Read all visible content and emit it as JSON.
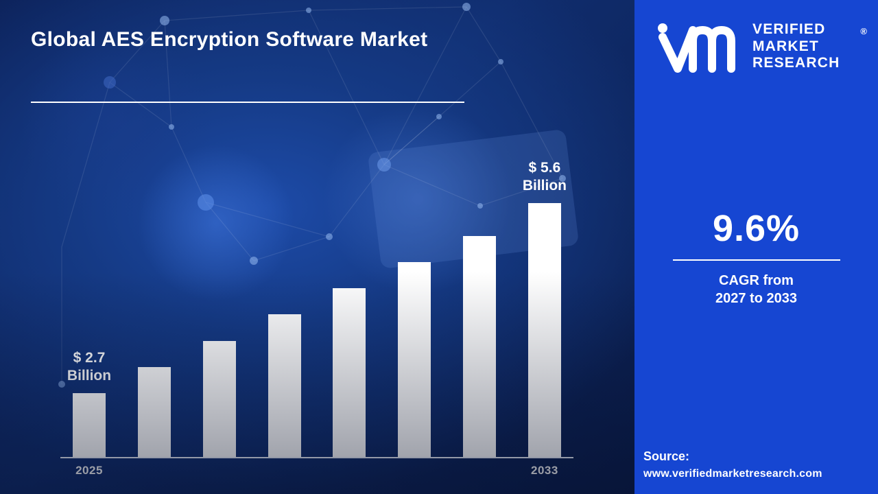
{
  "header": {
    "title": "Global AES Encryption Software Market"
  },
  "chart_data": {
    "type": "bar",
    "categories": [
      "2025",
      "",
      "",
      "",
      "",
      "",
      "",
      "2033"
    ],
    "values": [
      2.7,
      3.1,
      3.5,
      3.9,
      4.3,
      4.7,
      5.1,
      5.6
    ],
    "unit": "USD Billion",
    "bar_color": "#ffffff",
    "ylim": [
      0,
      6
    ],
    "grid": false,
    "legend": "none",
    "annotations": [
      {
        "index": 0,
        "label": "$ 2.7\nBillion"
      },
      {
        "index": 7,
        "label": "$ 5.6\nBillion"
      }
    ],
    "x_axis_visible_labels": [
      "2025",
      "2033"
    ]
  },
  "panel": {
    "background": "#1646d2",
    "logo_text": [
      "VERIFIED",
      "MARKET",
      "RESEARCH"
    ],
    "registered_mark": "®",
    "cagr_value": "9.6%",
    "cagr_caption": "CAGR from\n2027 to 2033",
    "source_label": "Source:",
    "source_url": "www.verifiedmarketresearch.com"
  },
  "colors": {
    "left_background": "#102d6e",
    "panel_background": "#1646d2",
    "bar": "#ffffff",
    "text": "#ffffff"
  }
}
